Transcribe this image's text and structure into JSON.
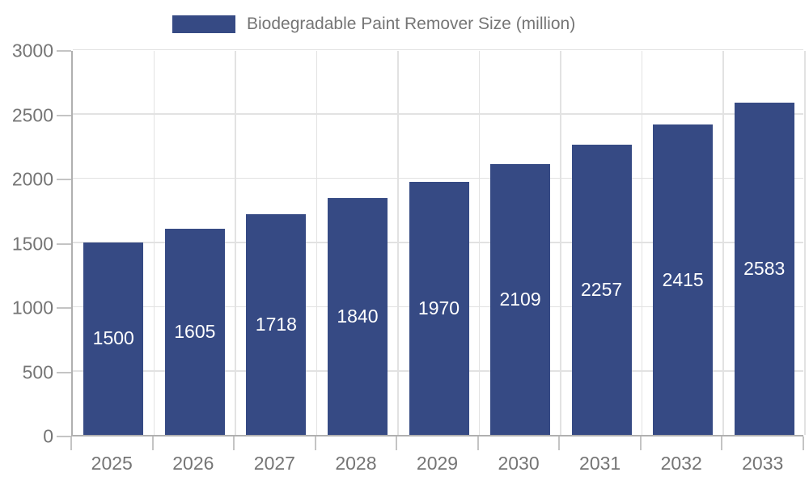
{
  "chart_data": {
    "type": "bar",
    "title": "Biodegradable Paint Remover Size (million)",
    "legend_label": "Biodegradable Paint Remover Size (million)",
    "categories": [
      "2025",
      "2026",
      "2027",
      "2028",
      "2029",
      "2030",
      "2031",
      "2032",
      "2033"
    ],
    "values": [
      1500,
      1605,
      1718,
      1840,
      1970,
      2109,
      2257,
      2415,
      2583
    ],
    "xlabel": "",
    "ylabel": "",
    "ylim": [
      0,
      3000
    ],
    "yticks": [
      0,
      500,
      1000,
      1500,
      2000,
      2500,
      3000
    ],
    "grid": true,
    "legend_position": "top-center",
    "bar_labels_shown": true,
    "colors": {
      "bar": "#364a84",
      "bar_label": "#ffffff",
      "axis_text": "#757575",
      "gridline": "#e2e2e2",
      "axis_line": "#b0b0b0",
      "tick": "#c4c4c4"
    }
  }
}
